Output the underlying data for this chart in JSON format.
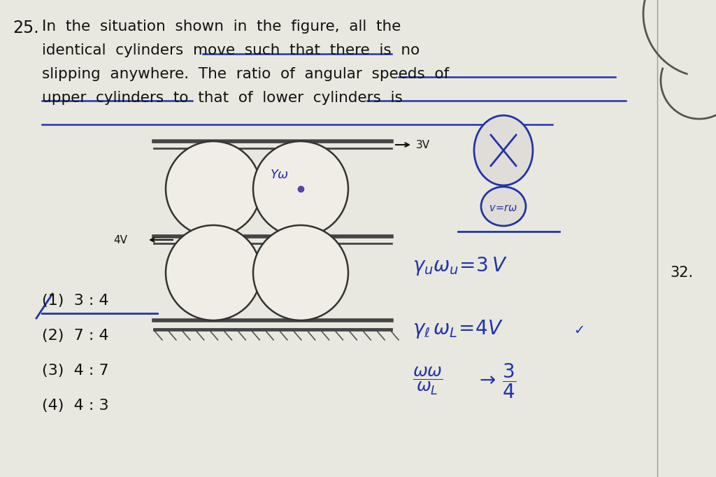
{
  "bg_color": "#e8e8e0",
  "question_number": "25.",
  "q_line1": "In  the  situation  shown  in  the  figure,  all  the",
  "q_line2": "identical  cylinders  move  such  that  there  is  no",
  "q_line3": "slipping  anywhere.  The  ratio  of  angular  speeds  of",
  "q_line4": "upper  cylinders  to  that  of  lower  cylinders  is",
  "options": [
    "(1)  3 : 4",
    "(2)  7 : 4",
    "(3)  4 : 7",
    "(4)  4 : 3"
  ],
  "side_number": "32.",
  "text_color": "#111111",
  "blue_color": "#2233aa",
  "plate_color": "#444444",
  "cyl_face": "#f0ede6",
  "cyl_edge": "#333333",
  "line_color": "#2233aa"
}
